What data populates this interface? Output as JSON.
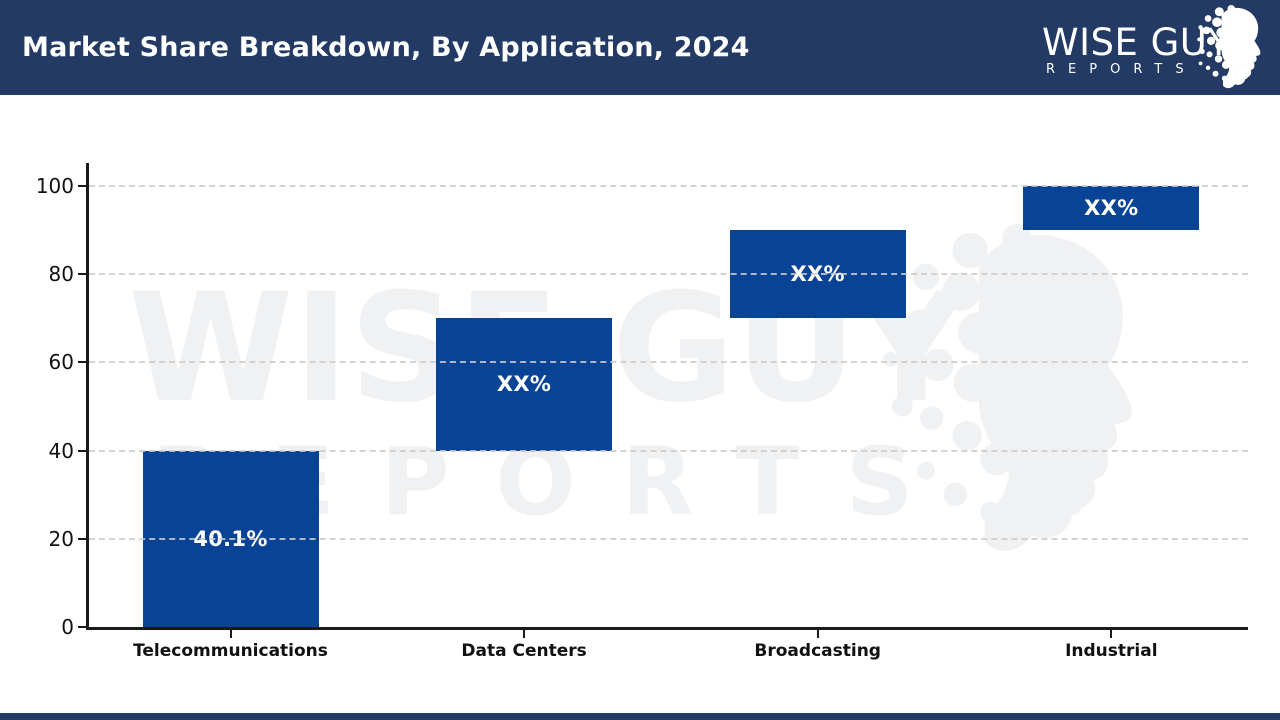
{
  "header": {
    "title": "Market Share Breakdown, By Application, 2024",
    "logo": {
      "wordmark": "WISE GUY",
      "subtext": "REPORTS"
    }
  },
  "watermark": {
    "line1": "WISE GUY",
    "line2": "REPORTS"
  },
  "chart_data": {
    "type": "bar",
    "subtype": "floating-waterfall",
    "title": "Market Share Breakdown, By Application, 2024",
    "categories": [
      "Telecommunications",
      "Data Centers",
      "Broadcasting",
      "Industrial"
    ],
    "segments": [
      {
        "category": "Telecommunications",
        "start": 0,
        "end": 40,
        "value_label": "40.1%"
      },
      {
        "category": "Data Centers",
        "start": 40,
        "end": 70,
        "value_label": "XX%"
      },
      {
        "category": "Broadcasting",
        "start": 70,
        "end": 90,
        "value_label": "XX%"
      },
      {
        "category": "Industrial",
        "start": 90,
        "end": 100,
        "value_label": "XX%"
      }
    ],
    "yticks": [
      0,
      20,
      40,
      60,
      80,
      100
    ],
    "ylim": [
      0,
      105
    ],
    "xlabel": "",
    "ylabel": "",
    "grid": "horizontal-dashed",
    "legend": "none"
  },
  "colors": {
    "header_bg": "#223a64",
    "footer_bg": "#223a64",
    "bar": "#094395",
    "value_label": "#ffffff",
    "axis": "#1a1a1a",
    "gridline": "#cbcbcb",
    "tick_label": "#111111",
    "watermark": "#f0f1f3",
    "page_bg": "#ffffff"
  }
}
